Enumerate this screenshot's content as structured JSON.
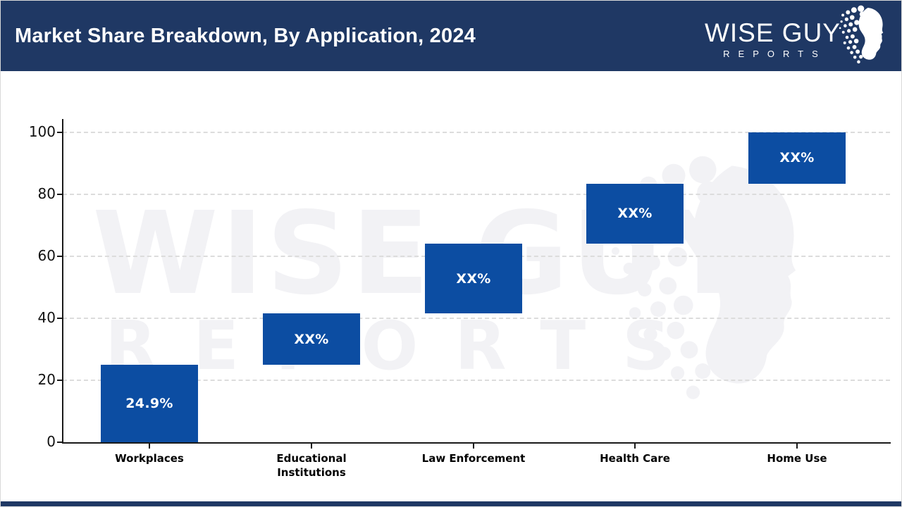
{
  "header": {
    "title": "Market Share Breakdown, By Application, 2024",
    "logo": {
      "line1": "WISE GUY",
      "line2": "REPORTS"
    }
  },
  "watermark": {
    "line1": "WISE GUY",
    "line2": "REPORTS"
  },
  "colors": {
    "header_bg": "#1f3864",
    "footer_bg": "#1f3864",
    "bar": "#0c4da2",
    "bar_label": "#ffffff",
    "gridline": "#dcdcdc",
    "axis": "#1a1a1a",
    "watermark": "#f2f2f5",
    "canvas_border": "#d9d9d9"
  },
  "chart_data": {
    "type": "bar",
    "subtype": "floating-waterfall",
    "title": "Market Share Breakdown, By Application, 2024",
    "categories": [
      "Workplaces",
      "Educational Institutions",
      "Law Enforcement",
      "Health Care",
      "Home Use"
    ],
    "category_display": [
      "Workplaces",
      "Educational\nInstitutions",
      "Law Enforcement",
      "Health Care",
      "Home Use"
    ],
    "series": [
      {
        "name": "Market Share (%)",
        "segments": [
          {
            "start": 0,
            "end": 24.9
          },
          {
            "start": 24.9,
            "end": 41.5
          },
          {
            "start": 41.5,
            "end": 64
          },
          {
            "start": 64,
            "end": 83.5
          },
          {
            "start": 83.5,
            "end": 100
          }
        ]
      }
    ],
    "bar_labels": [
      "24.9%",
      "XX%",
      "XX%",
      "XX%",
      "XX%"
    ],
    "xlabel": "",
    "ylabel": "",
    "ylim": [
      0,
      105
    ],
    "yticks": [
      0,
      20,
      40,
      60,
      80,
      100
    ],
    "grid": "dashed-horizontal",
    "legend": "none"
  }
}
